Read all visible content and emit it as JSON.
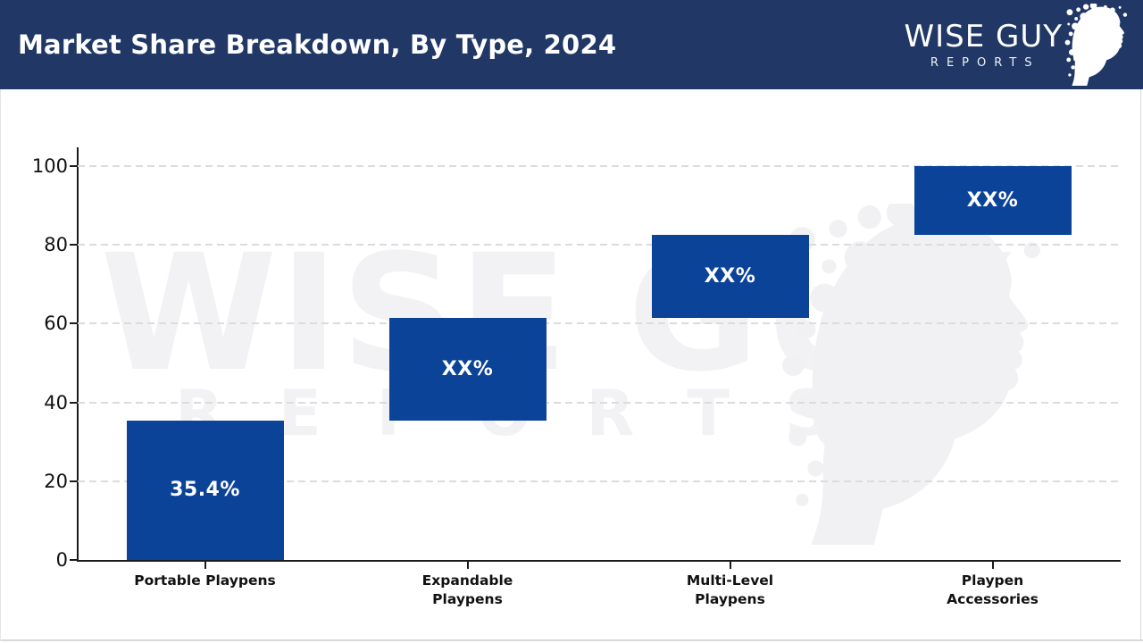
{
  "header": {
    "title": "Market Share Breakdown, By Type, 2024",
    "logo": {
      "main": "WISE GUY",
      "sub": "REPORTS"
    }
  },
  "watermark": {
    "line1": "WISE GUY",
    "line2": "REPORTS"
  },
  "chart_data": {
    "type": "bar",
    "subtype": "waterfall-stacked-percentage",
    "title": "Market Share Breakdown, By Type, 2024",
    "categories": [
      "Portable Playpens",
      "Expandable Playpens",
      "Multi-Level Playpens",
      "Playpen Accessories"
    ],
    "category_label_lines": [
      [
        "Portable Playpens"
      ],
      [
        "Expandable",
        "Playpens"
      ],
      [
        "Multi-Level",
        "Playpens"
      ],
      [
        "Playpen",
        "Accessories"
      ]
    ],
    "segments": [
      {
        "category": "Portable Playpens",
        "start": 0,
        "end": 35.4,
        "label": "35.4%"
      },
      {
        "category": "Expandable Playpens",
        "start": 35.4,
        "end": 61.4,
        "label": "XX%"
      },
      {
        "category": "Multi-Level Playpens",
        "start": 61.4,
        "end": 82.5,
        "label": "XX%"
      },
      {
        "category": "Playpen Accessories",
        "start": 82.5,
        "end": 100,
        "label": "XX%"
      }
    ],
    "y_ticks": [
      0,
      20,
      40,
      60,
      80,
      100
    ],
    "ylim": [
      0,
      105
    ],
    "xlabel": "",
    "ylabel": "",
    "grid": "horizontal-dashed",
    "legend": "none",
    "colors": {
      "bar": "#0b4398",
      "bar_label": "#ffffff",
      "axis": "#1a1a1a",
      "grid": "#dcdcdc",
      "header_bg": "#213866",
      "watermark": "#f2f2f4"
    }
  }
}
